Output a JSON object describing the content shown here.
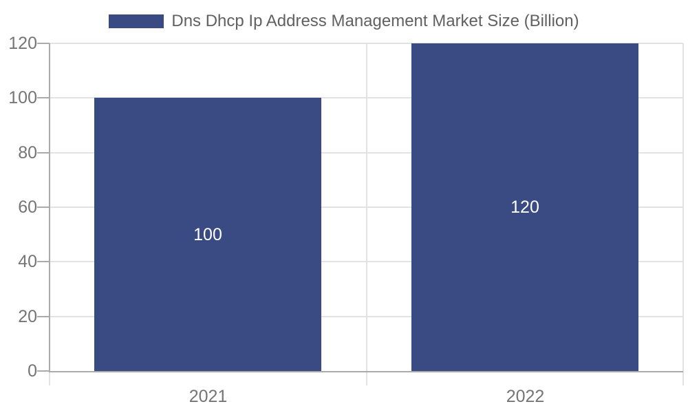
{
  "legend": {
    "label": "Dns Dhcp Ip Address Management Market Size (Billion)"
  },
  "colors": {
    "bar": "#3a4a82",
    "grid": "#e2e2e2",
    "axis": "#aaaaaa",
    "tick_label": "#757575",
    "title_text": "#616161",
    "bar_label": "#ffffff",
    "background": "#ffffff"
  },
  "chart_data": {
    "type": "bar",
    "title": "Dns Dhcp Ip Address Management Market Size (Billion)",
    "categories": [
      "2021",
      "2022"
    ],
    "values": [
      100,
      120
    ],
    "bar_labels": [
      "100",
      "120"
    ],
    "yticks": [
      0,
      20,
      40,
      60,
      80,
      100,
      120
    ],
    "ylim": [
      0,
      120
    ],
    "xlabel": "",
    "ylabel": "",
    "grid": true,
    "legend_position": "top-center",
    "bar_label_position": "inside-center"
  }
}
